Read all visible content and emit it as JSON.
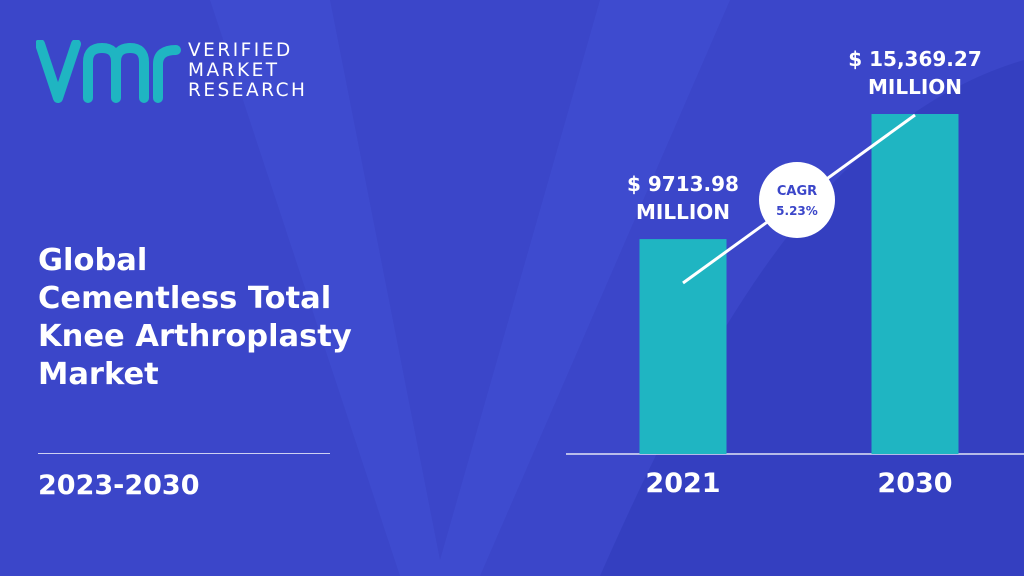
{
  "brand": {
    "line1": "VERIFIED",
    "line2": "MARKET",
    "line3": "RESEARCH",
    "accent_color": "#1fb5c2",
    "icon": "vmr-logo-icon"
  },
  "title_lines": [
    "Global",
    "Cementless Total",
    "Knee Arthroplasty",
    "Market"
  ],
  "period": "2023-2030",
  "colors": {
    "background": "#3b46c9",
    "bar": "#1fb5c2",
    "text": "#ffffff"
  },
  "chart_data": {
    "type": "bar",
    "categories": [
      "2021",
      "2030"
    ],
    "values": [
      9713.98,
      15369.27
    ],
    "value_labels": [
      [
        "$ 9713.98",
        "MILLION"
      ],
      [
        "$ 15,369.27",
        "MILLION"
      ]
    ],
    "unit": "MILLION",
    "title": "",
    "xlabel": "",
    "ylabel": "",
    "annotation": {
      "label": "CAGR",
      "value": "5.23%"
    }
  }
}
